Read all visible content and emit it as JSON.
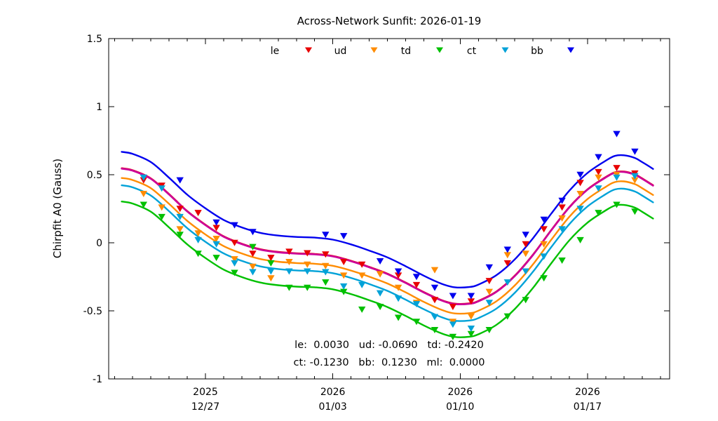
{
  "title": "Across-Network Sunfit: 2026-01-19",
  "y_axis_label": "Chirpfit A0 (Gauss)",
  "annotation": {
    "line1": "le:  0.0030   ud: -0.0690   td: -0.2420",
    "line2": "ct: -0.1230   bb:  0.1230   ml:  0.0000"
  },
  "legend": {
    "entries": [
      "le",
      "ud",
      "td",
      "ct",
      "bb"
    ]
  },
  "chart_data": {
    "type": "scatter",
    "title": "Across-Network Sunfit: 2026-01-19",
    "xlabel": "",
    "ylabel": "Chirpfit A0 (Gauss)",
    "grid": false,
    "legend_position": "top-center-inside",
    "x_axis": {
      "unit": "date",
      "day0_date": "2025-12-22",
      "domain_days": [
        -0.32,
        30.51
      ],
      "minor_tick_every_days": 1,
      "major_ticks": [
        {
          "day": 5,
          "line1": "2025",
          "line2": "12/27"
        },
        {
          "day": 12,
          "line1": "2026",
          "line2": "01/03"
        },
        {
          "day": 19,
          "line1": "2026",
          "line2": "01/10"
        },
        {
          "day": 26,
          "line1": "2026",
          "line2": "01/17"
        }
      ]
    },
    "y_axis": {
      "min": -1.0,
      "max": 1.5,
      "ticks": [
        {
          "v": -1.0,
          "label": "-1"
        },
        {
          "v": -0.5,
          "label": "-0.5"
        },
        {
          "v": 0.0,
          "label": "0"
        },
        {
          "v": 0.5,
          "label": "0.5"
        },
        {
          "v": 1.0,
          "label": "1"
        },
        {
          "v": 1.5,
          "label": "1.5"
        }
      ]
    },
    "fit": {
      "description": "Each series fit curve equals ml base curve plus the series offset",
      "curve_day_range": [
        0.4,
        29.6
      ],
      "ml_days": [
        0.4,
        1,
        2,
        3,
        4,
        5,
        6,
        7,
        8,
        9,
        10,
        11,
        12,
        13,
        14,
        15,
        16,
        17,
        18,
        18.7,
        19.5,
        20,
        21,
        22,
        23,
        24,
        25,
        26,
        27,
        27.5,
        28,
        28.6,
        29,
        29.6
      ],
      "ml_values": [
        0.545,
        0.53,
        0.47,
        0.355,
        0.23,
        0.13,
        0.045,
        -0.01,
        -0.05,
        -0.07,
        -0.08,
        -0.085,
        -0.1,
        -0.135,
        -0.18,
        -0.23,
        -0.295,
        -0.365,
        -0.425,
        -0.45,
        -0.448,
        -0.43,
        -0.36,
        -0.245,
        -0.09,
        0.09,
        0.26,
        0.39,
        0.48,
        0.515,
        0.52,
        0.5,
        0.47,
        0.42
      ]
    },
    "fit_results": {
      "le": 0.003,
      "ud": -0.069,
      "td": -0.242,
      "ct": -0.123,
      "bb": 0.123,
      "ml": 0.0
    },
    "series": [
      {
        "name": "le",
        "color": "#e80000",
        "marker": "triangle-down",
        "offset": 0.003,
        "points": [
          [
            1.6,
            0.46
          ],
          [
            2.6,
            0.42
          ],
          [
            3.6,
            0.25
          ],
          [
            4.6,
            0.22
          ],
          [
            5.6,
            0.11
          ],
          [
            6.6,
            0.0
          ],
          [
            7.6,
            -0.08
          ],
          [
            8.6,
            -0.11
          ],
          [
            9.6,
            -0.065
          ],
          [
            10.6,
            -0.076
          ],
          [
            11.6,
            -0.085
          ],
          [
            12.6,
            -0.14
          ],
          [
            13.6,
            -0.16
          ],
          [
            14.6,
            -0.23
          ],
          [
            15.6,
            -0.24
          ],
          [
            16.6,
            -0.31
          ],
          [
            17.6,
            -0.42
          ],
          [
            18.6,
            -0.47
          ],
          [
            19.6,
            -0.43
          ],
          [
            20.6,
            -0.28
          ],
          [
            21.6,
            -0.15
          ],
          [
            22.6,
            -0.01
          ],
          [
            23.6,
            0.1
          ],
          [
            24.6,
            0.26
          ],
          [
            25.6,
            0.44
          ],
          [
            26.6,
            0.52
          ],
          [
            27.6,
            0.55
          ],
          [
            28.6,
            0.51
          ]
        ]
      },
      {
        "name": "ud",
        "color": "#ff8c00",
        "marker": "triangle-down",
        "offset": -0.069,
        "points": [
          [
            1.6,
            0.36
          ],
          [
            2.6,
            0.26
          ],
          [
            3.6,
            0.1
          ],
          [
            4.6,
            0.07
          ],
          [
            5.6,
            0.03
          ],
          [
            6.6,
            -0.12
          ],
          [
            7.6,
            -0.175
          ],
          [
            8.6,
            -0.26
          ],
          [
            9.6,
            -0.14
          ],
          [
            10.6,
            -0.16
          ],
          [
            11.6,
            -0.17
          ],
          [
            12.6,
            -0.24
          ],
          [
            13.6,
            -0.24
          ],
          [
            14.6,
            -0.23
          ],
          [
            15.6,
            -0.33
          ],
          [
            16.6,
            -0.44
          ],
          [
            17.6,
            -0.2
          ],
          [
            18.6,
            -0.58
          ],
          [
            19.6,
            -0.54
          ],
          [
            20.6,
            -0.36
          ],
          [
            21.6,
            -0.09
          ],
          [
            22.6,
            -0.08
          ],
          [
            23.6,
            -0.01
          ],
          [
            24.6,
            0.18
          ],
          [
            25.6,
            0.36
          ],
          [
            26.6,
            0.48
          ],
          [
            27.6,
            0.5
          ],
          [
            28.6,
            0.46
          ]
        ]
      },
      {
        "name": "td",
        "color": "#00c000",
        "marker": "triangle-down",
        "offset": -0.242,
        "points": [
          [
            1.6,
            0.28
          ],
          [
            2.6,
            0.19
          ],
          [
            3.6,
            0.06
          ],
          [
            4.6,
            -0.08
          ],
          [
            5.6,
            -0.11
          ],
          [
            6.6,
            -0.22
          ],
          [
            7.6,
            -0.03
          ],
          [
            8.6,
            -0.15
          ],
          [
            9.6,
            -0.33
          ],
          [
            10.6,
            -0.33
          ],
          [
            11.6,
            -0.29
          ],
          [
            12.6,
            -0.36
          ],
          [
            13.6,
            -0.49
          ],
          [
            14.6,
            -0.47
          ],
          [
            15.6,
            -0.55
          ],
          [
            16.6,
            -0.58
          ],
          [
            17.6,
            -0.64
          ],
          [
            18.6,
            -0.69
          ],
          [
            19.6,
            -0.67
          ],
          [
            20.6,
            -0.64
          ],
          [
            21.6,
            -0.54
          ],
          [
            22.6,
            -0.42
          ],
          [
            23.6,
            -0.26
          ],
          [
            24.6,
            -0.13
          ],
          [
            25.6,
            0.02
          ],
          [
            26.6,
            0.22
          ],
          [
            27.6,
            0.28
          ],
          [
            28.6,
            0.23
          ]
        ]
      },
      {
        "name": "ct",
        "color": "#00a2d8",
        "marker": "triangle-down",
        "offset": -0.123,
        "points": [
          [
            1.6,
            0.48
          ],
          [
            2.6,
            0.4
          ],
          [
            3.6,
            0.19
          ],
          [
            4.6,
            0.02
          ],
          [
            5.6,
            -0.01
          ],
          [
            6.6,
            -0.15
          ],
          [
            7.6,
            -0.215
          ],
          [
            8.6,
            -0.21
          ],
          [
            9.6,
            -0.21
          ],
          [
            10.6,
            -0.21
          ],
          [
            11.6,
            -0.215
          ],
          [
            12.6,
            -0.32
          ],
          [
            13.6,
            -0.31
          ],
          [
            14.6,
            -0.37
          ],
          [
            15.6,
            -0.41
          ],
          [
            16.6,
            -0.45
          ],
          [
            17.6,
            -0.545
          ],
          [
            18.6,
            -0.6
          ],
          [
            19.6,
            -0.63
          ],
          [
            20.6,
            -0.44
          ],
          [
            21.6,
            -0.29
          ],
          [
            22.6,
            -0.21
          ],
          [
            23.6,
            -0.1
          ],
          [
            24.6,
            0.1
          ],
          [
            25.6,
            0.25
          ],
          [
            26.6,
            0.4
          ],
          [
            27.6,
            0.48
          ],
          [
            28.6,
            0.49
          ]
        ]
      },
      {
        "name": "bb",
        "color": "#0000ee",
        "marker": "triangle-down",
        "offset": 0.123,
        "points": [
          [
            3.6,
            0.46
          ],
          [
            5.6,
            0.15
          ],
          [
            6.6,
            0.13
          ],
          [
            7.6,
            0.08
          ],
          [
            11.6,
            0.06
          ],
          [
            12.6,
            0.05
          ],
          [
            14.6,
            -0.135
          ],
          [
            15.6,
            -0.21
          ],
          [
            16.6,
            -0.25
          ],
          [
            17.6,
            -0.33
          ],
          [
            18.6,
            -0.39
          ],
          [
            19.6,
            -0.39
          ],
          [
            20.6,
            -0.18
          ],
          [
            21.6,
            -0.05
          ],
          [
            22.6,
            0.06
          ],
          [
            23.6,
            0.17
          ],
          [
            24.6,
            0.31
          ],
          [
            25.6,
            0.5
          ],
          [
            26.6,
            0.63
          ],
          [
            27.6,
            0.8
          ],
          [
            28.6,
            0.67
          ]
        ]
      },
      {
        "name": "ml",
        "color": "#cc0099",
        "marker": "none",
        "offset": 0.0,
        "curve_only": true,
        "points": []
      }
    ]
  }
}
